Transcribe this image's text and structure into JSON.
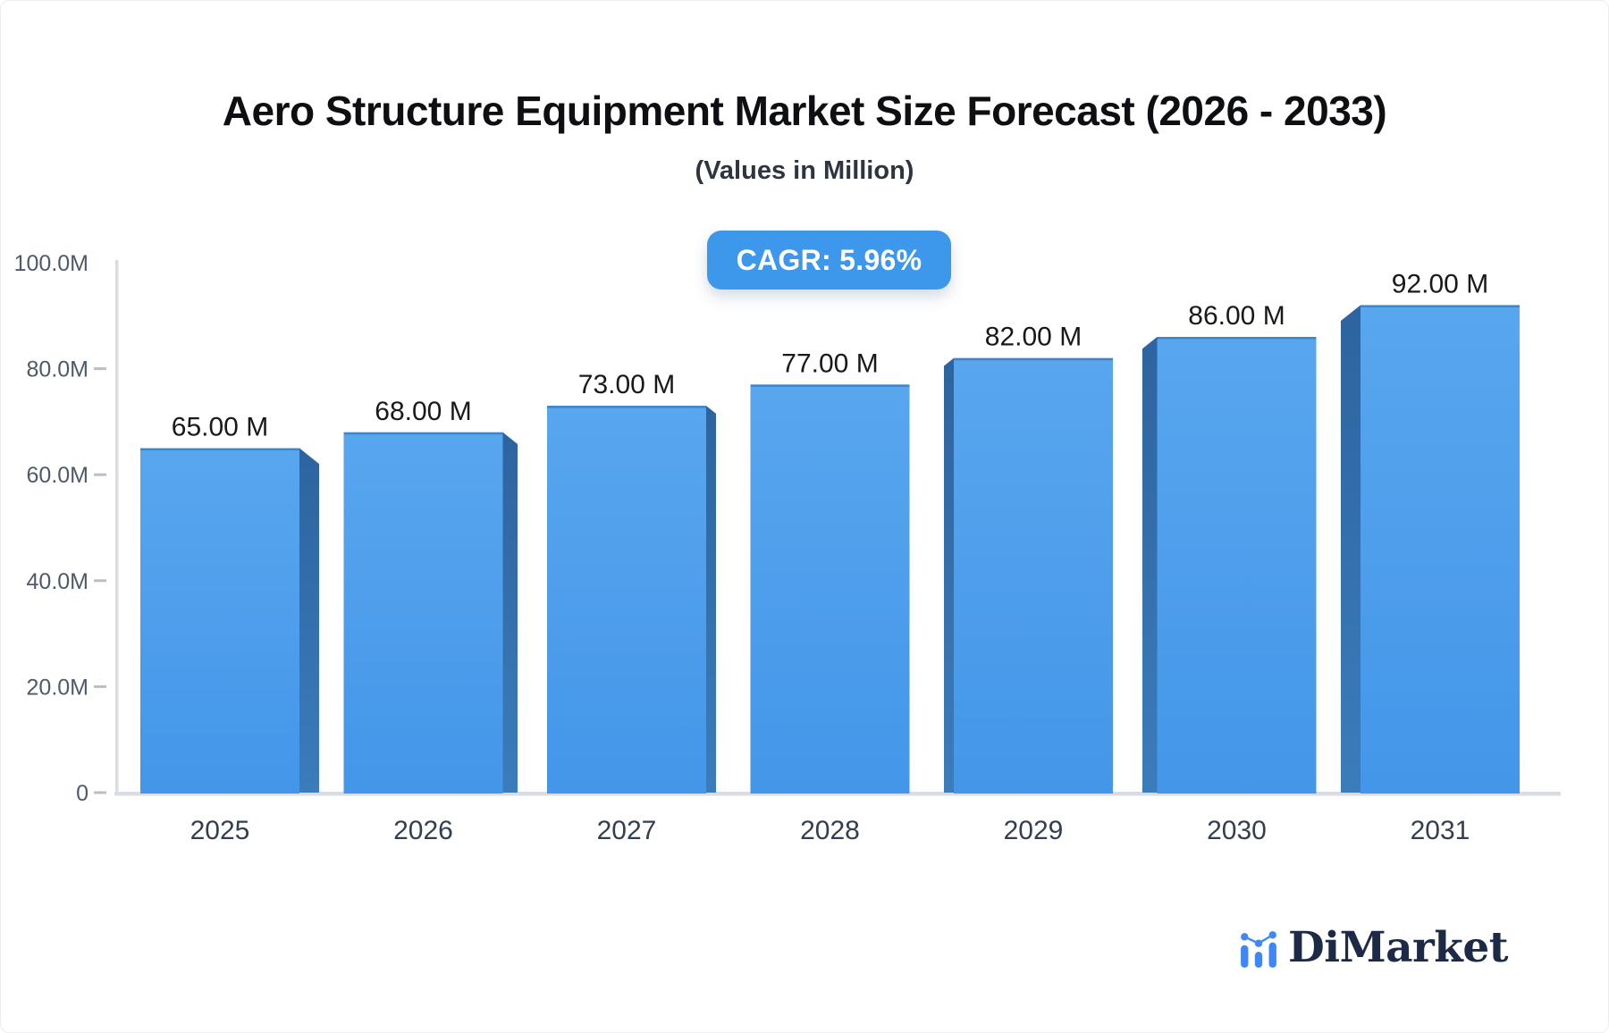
{
  "title": "Aero Structure Equipment Market Size Forecast (2026 - 2033)",
  "subtitle": "(Values in Million)",
  "badge": {
    "label": "CAGR: 5.96%",
    "bg_color": "#3d97ea",
    "text_color": "#ffffff"
  },
  "logo": {
    "text": "DiMarket",
    "text_color": "#1d2a47",
    "icon_color": "#3f87f6",
    "icon": "mini-bar-chart-logo-icon"
  },
  "chart_data": {
    "type": "bar",
    "style": "3d-perspective",
    "title": "Aero Structure Equipment Market Size Forecast (2026 - 2033)",
    "subtitle": "(Values in Million)",
    "units": "Million",
    "categories": [
      "2025",
      "2026",
      "2027",
      "2028",
      "2029",
      "2030",
      "2031"
    ],
    "values": [
      65,
      68,
      73,
      77,
      82,
      86,
      92
    ],
    "value_labels": [
      "65.00 M",
      "68.00 M",
      "73.00 M",
      "77.00 M",
      "82.00 M",
      "86.00 M",
      "92.00 M"
    ],
    "xlabel": "",
    "ylabel": "",
    "ylim": [
      0,
      100
    ],
    "y_tick_values": [
      100,
      80,
      60,
      40,
      20,
      0
    ],
    "y_ticks": [
      "100.0M",
      "80.0M",
      "60.0M",
      "40.0M",
      "20.0M",
      "0"
    ],
    "grid": false,
    "legend": null,
    "colors": {
      "face_top": "#58a6ee",
      "face_bottom": "#4396e9",
      "face_edge": "#3e86cc",
      "side_top": "#2d649f",
      "side_bottom": "#3b7cbb",
      "axis_line": "#d9dce2",
      "tick_dash": "#b9bfc8",
      "tick_label": "#4e5a6a",
      "year_label": "#333e4e",
      "value_label": "#17191c"
    }
  }
}
